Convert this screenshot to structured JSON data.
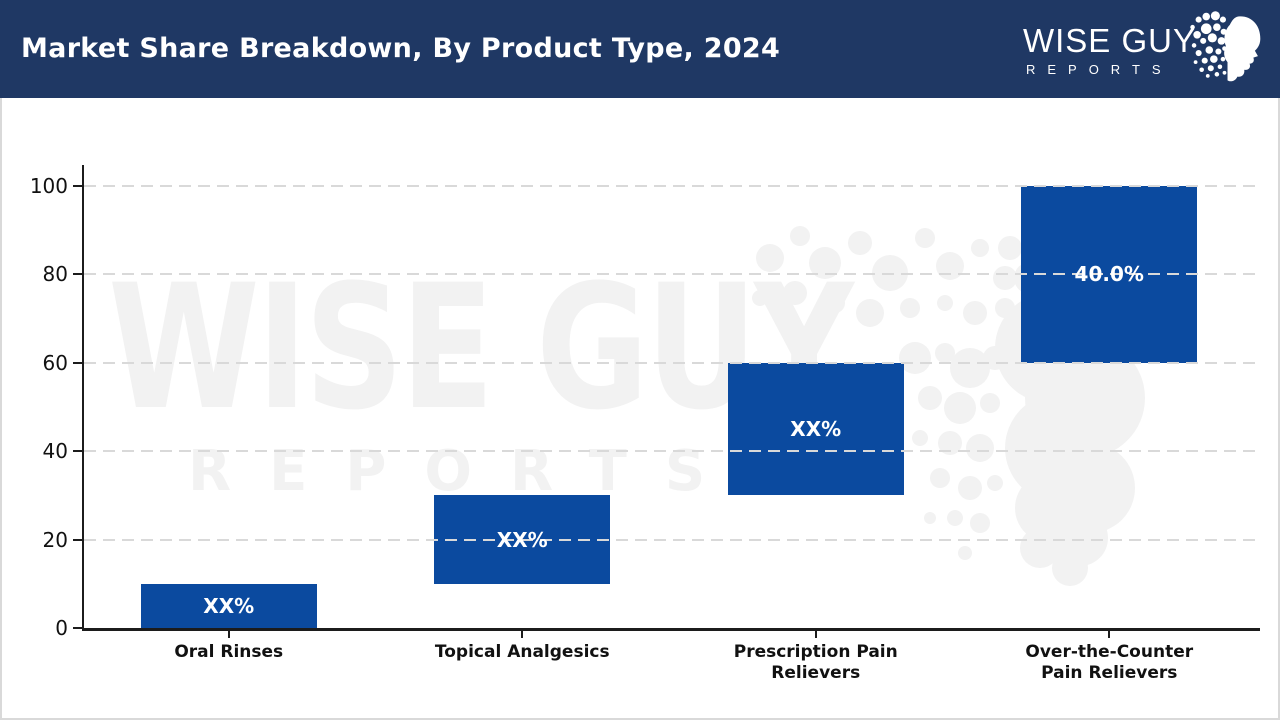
{
  "header": {
    "title": "Market Share Breakdown, By Product Type, 2024",
    "background": "#1f3864",
    "logo": {
      "wordmark": "WISE GUY",
      "subtitle": "REPORTS"
    }
  },
  "watermark": {
    "wordmark": "WISE GUY",
    "subtitle": "REPORTS",
    "color": "#f2f2f2"
  },
  "chart_data": {
    "type": "bar",
    "variant": "waterfall",
    "title": "Market Share Breakdown, By Product Type, 2024",
    "categories": [
      "Oral Rinses",
      "Topical Analgesics",
      "Prescription Pain Relievers",
      "Over-the-Counter Pain Relievers"
    ],
    "category_lines": [
      [
        "Oral Rinses"
      ],
      [
        "Topical Analgesics"
      ],
      [
        "Prescription Pain",
        "Relievers"
      ],
      [
        "Over-the-Counter",
        "Pain Relievers"
      ]
    ],
    "segments": [
      {
        "category": "Oral Rinses",
        "start": 0,
        "end": 10,
        "value": 10,
        "label": "XX%"
      },
      {
        "category": "Topical Analgesics",
        "start": 10,
        "end": 30,
        "value": 20,
        "label": "XX%"
      },
      {
        "category": "Prescription Pain Relievers",
        "start": 30,
        "end": 60,
        "value": 30,
        "label": "XX%"
      },
      {
        "category": "Over-the-Counter Pain Relievers",
        "start": 60,
        "end": 100,
        "value": 40,
        "label": "40.0%"
      }
    ],
    "yticks": [
      0,
      20,
      40,
      60,
      80,
      100
    ],
    "ylim": [
      0,
      100
    ],
    "xlabel": "",
    "ylabel": "",
    "grid": true,
    "grid_style": "dashed",
    "grid_color": "#d9d9d9",
    "bar_color": "#0b4a9f",
    "bar_label_color": "#ffffff",
    "axis_color": "#1c1c1c",
    "tick_label_color": "#111111"
  }
}
